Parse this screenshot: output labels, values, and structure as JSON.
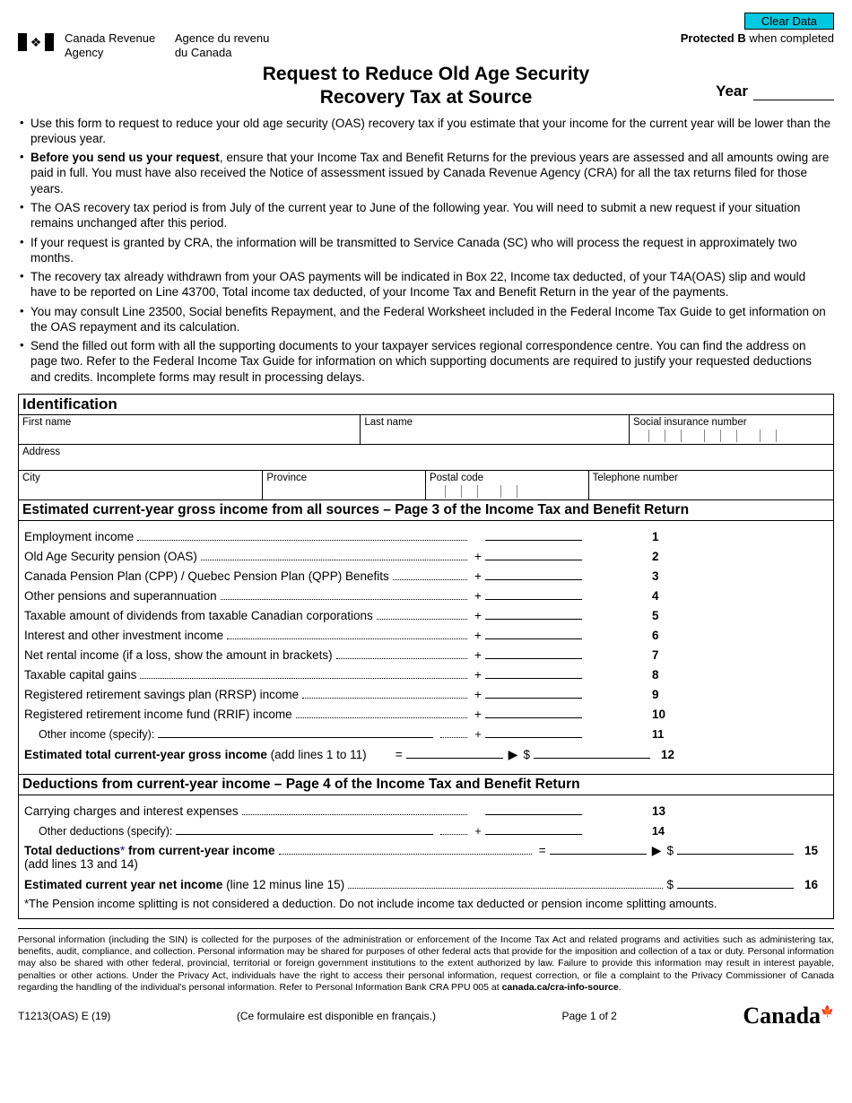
{
  "buttons": {
    "clear": "Clear Data"
  },
  "header": {
    "agency_en_1": "Canada Revenue",
    "agency_en_2": "Agency",
    "agency_fr_1": "Agence du revenu",
    "agency_fr_2": "du Canada",
    "protected_b": "Protected B",
    "protected_tail": " when completed"
  },
  "title": {
    "line1": "Request to Reduce Old Age Security",
    "line2": "Recovery Tax at Source",
    "year_label": "Year"
  },
  "instructions": [
    "Use this form to request to reduce your old age security (OAS) recovery tax if you estimate that your income for the current year will be lower than the previous year.",
    "Before you send us your request, ensure that your Income Tax and Benefit Returns for the previous years are assessed and all amounts owing are paid in full. You must have also received the Notice of assessment issued by Canada Revenue Agency (CRA) for all the tax returns filed for those years.",
    "The OAS recovery tax period is from July of the current year to June of the following year. You will need to submit a new request if your situation remains unchanged after this period.",
    "If your request is granted by CRA, the information will be transmitted to Service Canada (SC) who will process the request in approximately two months.",
    "The recovery tax already withdrawn from your OAS payments will be indicated in Box 22, Income tax deducted, of your T4A(OAS) slip and would have to be reported on Line 43700, Total income tax deducted, of your Income Tax and Benefit Return in the year of the payments.",
    "You may consult Line 23500, Social benefits Repayment, and the Federal Worksheet included in the Federal Income Tax Guide to get information on the OAS repayment and its calculation.",
    "Send the filled out form with all the supporting documents to your taxpayer services regional correspondence centre. You can find the address on page two. Refer to the Federal Income Tax Guide for information on which supporting documents are required to justify your requested deductions and credits. Incomplete forms may result in processing delays."
  ],
  "instr_bold_prefix": {
    "1": "Before you send us your request"
  },
  "identification": {
    "heading": "Identification",
    "first_name": "First name",
    "last_name": "Last name",
    "sin": "Social insurance number",
    "address": "Address",
    "city": "City",
    "province": "Province",
    "postal": "Postal code",
    "phone": "Telephone number"
  },
  "income": {
    "heading": "Estimated current-year gross income from all sources – Page 3 of the Income Tax and Benefit Return",
    "rows": [
      {
        "label": "Employment income",
        "op": "",
        "num": "1"
      },
      {
        "label": "Old Age Security pension (OAS)",
        "op": "+",
        "num": "2"
      },
      {
        "label": "Canada Pension Plan (CPP) / Quebec Pension Plan (QPP) Benefits",
        "op": "+",
        "num": "3"
      },
      {
        "label": "Other pensions and superannuation",
        "op": "+",
        "num": "4"
      },
      {
        "label": "Taxable amount of dividends from taxable Canadian corporations",
        "op": "+",
        "num": "5"
      },
      {
        "label": "Interest and other investment income",
        "op": "+",
        "num": "6"
      },
      {
        "label": "Net rental income (if a loss, show the amount in brackets)",
        "op": "+",
        "num": "7"
      },
      {
        "label": "Taxable capital gains",
        "op": "+",
        "num": "8"
      },
      {
        "label": "Registered retirement savings plan (RRSP) income",
        "op": "+",
        "num": "9"
      },
      {
        "label": "Registered retirement income fund (RRIF) income",
        "op": "+",
        "num": "10"
      }
    ],
    "other_label": "Other income (specify):",
    "other_num": "11",
    "total_label": "Estimated total current-year gross income",
    "total_tail": " (add lines 1 to 11)",
    "total_num": "12"
  },
  "deductions": {
    "heading": "Deductions from current-year income – Page 4 of the Income Tax and Benefit Return",
    "row1": {
      "label": "Carrying charges and interest expenses",
      "num": "13"
    },
    "other_label": "Other deductions (specify):",
    "other_num": "14",
    "total_label": "Total deductions",
    "total_star": "*",
    "total_tail": " from current-year income",
    "total_sub": "(add lines 13 and 14)",
    "total_num": "15",
    "net_label": "Estimated current year net income",
    "net_tail": " (line 12 minus line 15)",
    "net_num": "16",
    "footnote": "*The Pension income splitting is not considered a deduction. Do not include income tax deducted or pension income splitting amounts."
  },
  "privacy": "Personal information (including the SIN) is collected for the purposes of the administration or enforcement of the Income Tax Act and related programs and activities such as administering tax, benefits, audit, compliance, and collection. Personal information may be shared for purposes of other federal acts that provide for the imposition and collection of a tax or duty. Personal information may also be shared with other federal, provincial, territorial or foreign government institutions to the extent authorized by law. Failure to provide this information may result in interest payable, penalties or other actions. Under the Privacy Act, individuals have the right to access their personal information, request correction, or file a complaint to the Privacy Commissioner of Canada regarding the handling of the individual's personal information. Refer to Personal Information Bank CRA PPU 005 at canada.ca/cra-info-source.",
  "footer": {
    "form_no": "T1213(OAS) E (19)",
    "french": "(Ce formulaire est disponible en français.)",
    "page": "Page 1 of 2",
    "wordmark": "Canada"
  }
}
